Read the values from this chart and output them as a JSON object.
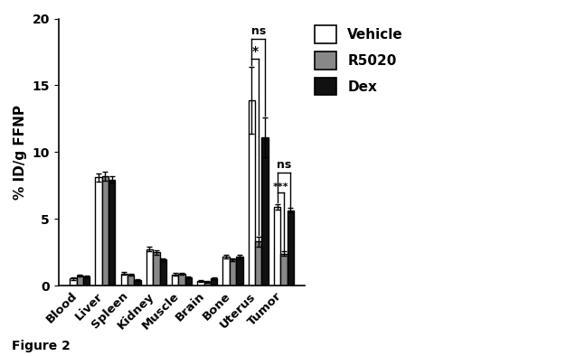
{
  "categories": [
    "Blood",
    "Liver",
    "Spleen",
    "Kidney",
    "Muscle",
    "Brain",
    "Bone",
    "Uterus",
    "Tumor"
  ],
  "vehicle": [
    0.55,
    8.1,
    0.9,
    2.75,
    0.85,
    0.35,
    2.2,
    13.9,
    5.9
  ],
  "r5020": [
    0.75,
    8.2,
    0.85,
    2.5,
    0.9,
    0.28,
    1.95,
    3.3,
    2.4
  ],
  "dex": [
    0.7,
    7.95,
    0.4,
    1.95,
    0.65,
    0.55,
    2.2,
    11.1,
    5.65
  ],
  "vehicle_err": [
    0.1,
    0.28,
    0.1,
    0.15,
    0.1,
    0.06,
    0.15,
    2.5,
    0.22
  ],
  "r5020_err": [
    0.08,
    0.32,
    0.08,
    0.15,
    0.09,
    0.05,
    0.12,
    0.38,
    0.18
  ],
  "dex_err": [
    0.09,
    0.25,
    0.06,
    0.1,
    0.07,
    0.07,
    0.12,
    1.5,
    0.18
  ],
  "ylabel": "% ID/g FFNP",
  "ylim": [
    0,
    20
  ],
  "yticks": [
    0,
    5,
    10,
    15,
    20
  ],
  "bar_width": 0.26,
  "colors": [
    "#ffffff",
    "#888888",
    "#111111"
  ],
  "legend_labels": [
    "Vehicle",
    "R5020",
    "Dex"
  ],
  "figure_label": "Figure 2",
  "annot_uterus_ns": "ns",
  "annot_uterus_star": "*",
  "annot_tumor_ns": "ns",
  "annot_tumor_star": "***"
}
